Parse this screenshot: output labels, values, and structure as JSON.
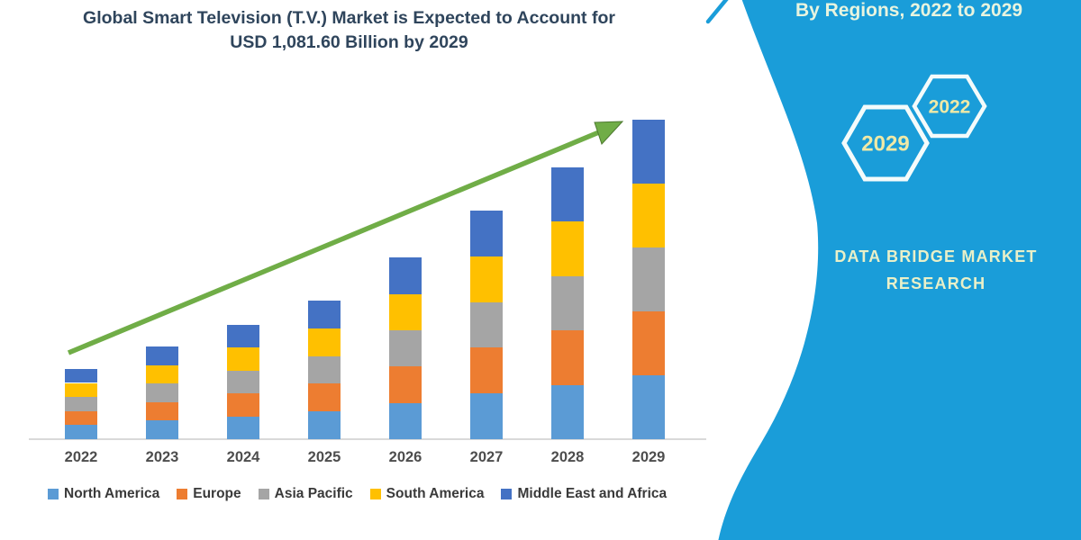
{
  "title": {
    "line1": "Global Smart Television (T.V.) Market is Expected to Account for",
    "line2": "USD 1,081.60 Billion by 2029"
  },
  "sidebar": {
    "heading": "By Regions, 2022 to 2029",
    "hexagon_front_label": "2029",
    "hexagon_back_label": "2022",
    "brand_line1": "DATA BRIDGE MARKET",
    "brand_line2": "RESEARCH",
    "panel_color": "#1a9dd9",
    "heading_color": "#e8f4df",
    "hexagon_text_color": "#efe9a6",
    "brand_text_color": "#e9f0c8"
  },
  "chart_data": {
    "type": "bar",
    "stacked": true,
    "title": "Global Smart Television (T.V.) Market is Expected to Account for USD 1,081.60 Billion by 2029",
    "xlabel": "",
    "ylabel": "",
    "y_axis_visible": false,
    "grid": false,
    "legend_position": "bottom",
    "categories": [
      "2022",
      "2023",
      "2024",
      "2025",
      "2026",
      "2027",
      "2028",
      "2029"
    ],
    "estimated_totals_usd_billion": [
      238,
      314,
      387,
      469,
      615,
      774,
      920,
      1081.6
    ],
    "series": [
      {
        "name": "North America",
        "color": "#5b9bd5",
        "values": [
          47.6,
          62.8,
          77.4,
          93.8,
          123.0,
          154.8,
          184.0,
          216.3
        ]
      },
      {
        "name": "Europe",
        "color": "#ed7d31",
        "values": [
          47.6,
          62.8,
          77.4,
          93.8,
          123.0,
          154.8,
          184.0,
          216.3
        ]
      },
      {
        "name": "Asia Pacific",
        "color": "#a5a5a5",
        "values": [
          47.6,
          62.8,
          77.4,
          93.8,
          123.0,
          154.8,
          184.0,
          216.3
        ]
      },
      {
        "name": "South America",
        "color": "#ffc000",
        "values": [
          47.6,
          62.8,
          77.4,
          93.8,
          123.0,
          154.8,
          184.0,
          216.3
        ]
      },
      {
        "name": "Middle East and Africa",
        "color": "#4472c4",
        "values": [
          47.6,
          62.8,
          77.4,
          93.8,
          123.0,
          154.8,
          184.0,
          216.3
        ]
      }
    ],
    "trend_arrow": {
      "present": true,
      "color": "#70ad47"
    },
    "axis_line_color": "#d9d9d9"
  }
}
